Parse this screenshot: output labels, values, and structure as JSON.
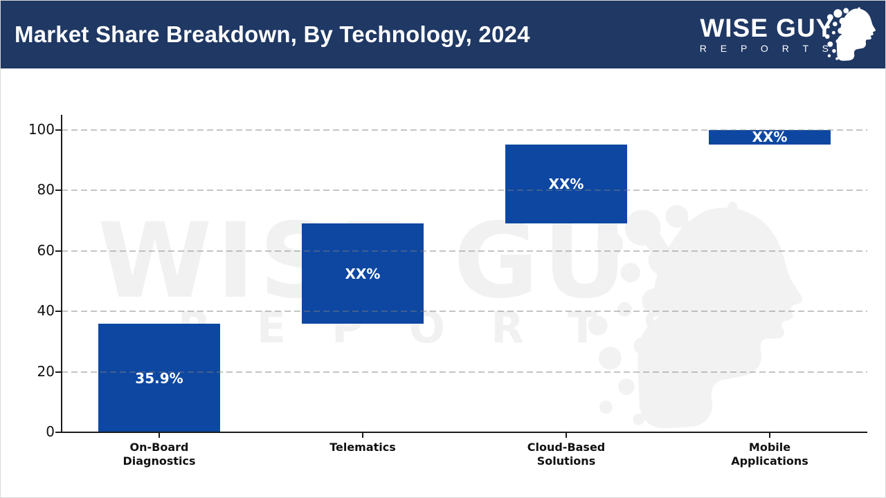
{
  "header": {
    "title": "Market Share Breakdown, By Technology, 2024",
    "logo": {
      "line1": "WISE GUY",
      "line2": "R E P O R T S"
    }
  },
  "watermark": {
    "line1": "WISE GUY",
    "line2": "REPORTS"
  },
  "chart_data": {
    "type": "waterfall",
    "title": "Market Share Breakdown, By Technology, 2024",
    "categories": [
      "On-Board Diagnostics",
      "Telematics",
      "Cloud-Based Solutions",
      "Mobile Applications"
    ],
    "category_lines": [
      [
        "On-Board",
        "Diagnostics"
      ],
      [
        "Telematics"
      ],
      [
        "Cloud-Based",
        "Solutions"
      ],
      [
        "Mobile",
        "Applications"
      ]
    ],
    "segments": [
      {
        "category": "On-Board Diagnostics",
        "start": 0,
        "end": 35.9,
        "label": "35.9%"
      },
      {
        "category": "Telematics",
        "start": 35.9,
        "end": 69,
        "label": "XX%"
      },
      {
        "category": "Cloud-Based Solutions",
        "start": 69,
        "end": 95.3,
        "label": "XX%"
      },
      {
        "category": "Mobile Applications",
        "start": 95.3,
        "end": 100,
        "label": "XX%"
      }
    ],
    "xlabel": "",
    "ylabel": "",
    "y_ticks": [
      0,
      20,
      40,
      60,
      80,
      100
    ],
    "ylim": [
      0,
      105
    ],
    "grid": "horizontal-dashed",
    "legend": "none",
    "bar_color": "#0D47A1",
    "bar_label_color": "#ffffff"
  },
  "colors": {
    "header_bg": "#1F3864",
    "bar": "#0D47A1",
    "axis": "#1a1a1a",
    "watermark": "#f1f1f1"
  }
}
